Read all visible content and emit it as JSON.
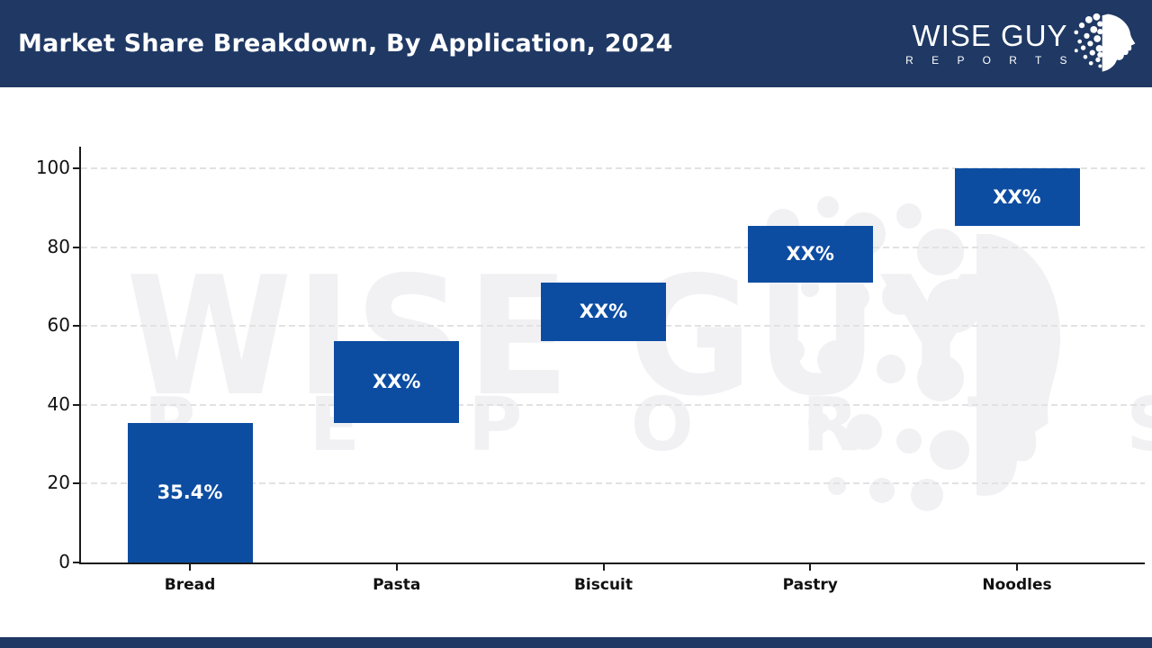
{
  "header": {
    "title": "Market Share Breakdown, By Application, 2024",
    "bg_color": "#1F3864"
  },
  "logo": {
    "line1": "WISE GUY",
    "line2": "R E P O R T S"
  },
  "watermark": {
    "line1": "WISE GUY",
    "line2": "R E P O R T S"
  },
  "chart_data": {
    "type": "bar",
    "variant": "waterfall",
    "title": "Market Share Breakdown, By Application, 2024",
    "categories": [
      "Bread",
      "Pasta",
      "Biscuit",
      "Pastry",
      "Noodles"
    ],
    "segments": [
      {
        "category": "Bread",
        "start": 0,
        "end": 35.4,
        "label": "35.4%"
      },
      {
        "category": "Pasta",
        "start": 35.4,
        "end": 56.2,
        "label": "XX%"
      },
      {
        "category": "Biscuit",
        "start": 56.2,
        "end": 71.0,
        "label": "XX%"
      },
      {
        "category": "Pastry",
        "start": 71.0,
        "end": 85.4,
        "label": "XX%"
      },
      {
        "category": "Noodles",
        "start": 85.4,
        "end": 100,
        "label": "XX%"
      }
    ],
    "ylim": [
      0,
      100
    ],
    "yticks": [
      0,
      20,
      40,
      60,
      80,
      100
    ],
    "xlabel": "",
    "ylabel": "",
    "bar_color": "#0C4DA2",
    "grid": "horizontal-dashed",
    "legend": "none"
  }
}
